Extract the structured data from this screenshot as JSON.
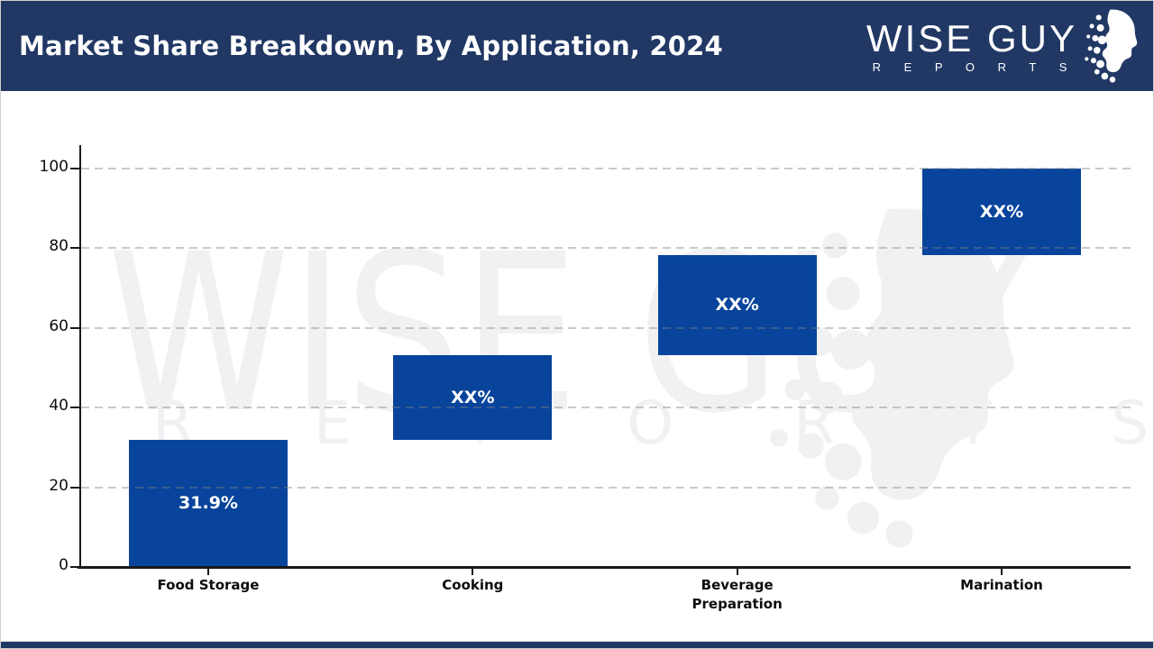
{
  "header": {
    "title": "Market Share Breakdown, By Application, 2024",
    "bg_color": "#213865",
    "logo": {
      "line1": "WISE GUY",
      "line2": "R E P O R T S"
    }
  },
  "watermark": {
    "line1": "WISE GUY",
    "line2": "R E P O R T S"
  },
  "chart_data": {
    "type": "bar",
    "subtype": "waterfall-floating-bars",
    "title": "Market Share Breakdown, By Application, 2024",
    "xlabel": "",
    "ylabel": "",
    "ylim": [
      0,
      100
    ],
    "yticks": [
      0,
      20,
      40,
      60,
      80,
      100
    ],
    "grid": "dashed-horizontal",
    "legend": "none",
    "bar_color": "#08449c",
    "bar_label_color": "#ffffff",
    "categories": [
      "Food Storage",
      "Cooking",
      "Beverage Preparation",
      "Marination"
    ],
    "segments": [
      {
        "category": "Food Storage",
        "display": "Food Storage",
        "start": 0,
        "end": 31.9,
        "label": "31.9%"
      },
      {
        "category": "Cooking",
        "display": "Cooking",
        "start": 31.9,
        "end": 53.2,
        "label": "XX%"
      },
      {
        "category": "Beverage Preparation",
        "display": "Beverage\nPreparation",
        "start": 53.2,
        "end": 78.1,
        "label": "XX%"
      },
      {
        "category": "Marination",
        "display": "Marination",
        "start": 78.1,
        "end": 100,
        "label": "XX%"
      }
    ]
  }
}
